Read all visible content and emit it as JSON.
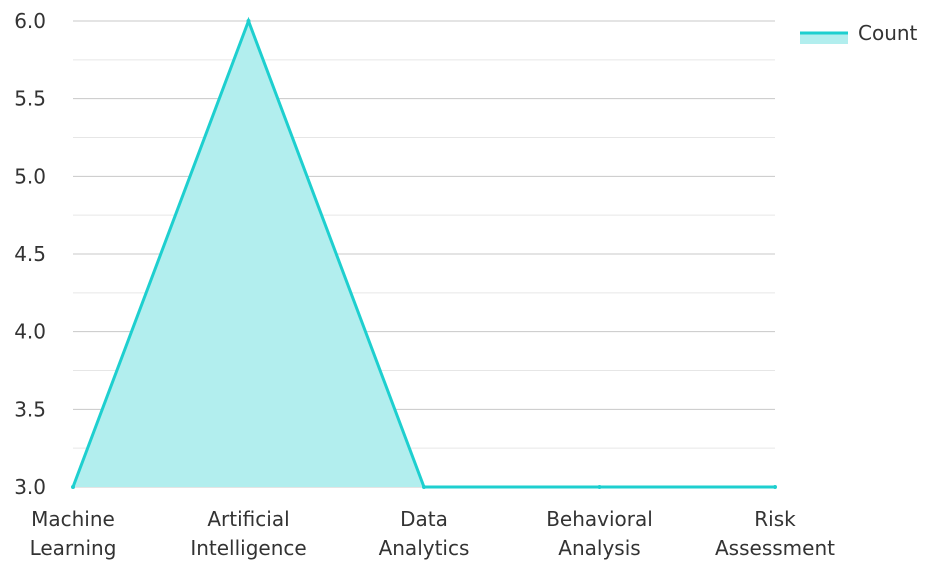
{
  "chart_data": {
    "type": "area",
    "categories": [
      [
        "Machine",
        "Learning"
      ],
      [
        "Artificial",
        "Intelligence"
      ],
      [
        "Data",
        "Analytics"
      ],
      [
        "Behavioral",
        "Analysis"
      ],
      [
        "Risk",
        "Assessment"
      ]
    ],
    "series": [
      {
        "name": "Count",
        "values": [
          3,
          6,
          3,
          3,
          3
        ]
      }
    ],
    "y_ticks": [
      "3.0",
      "3.5",
      "4.0",
      "4.5",
      "5.0",
      "5.5",
      "6.0"
    ],
    "ylim": [
      3,
      6
    ],
    "title": "",
    "xlabel": "",
    "ylabel": "",
    "grid": true,
    "legend_position": "top-right",
    "colors": {
      "line": "#1ecfcf",
      "fill": "#b2eeee",
      "grid": "#c8c8c8",
      "text": "#333333"
    }
  }
}
